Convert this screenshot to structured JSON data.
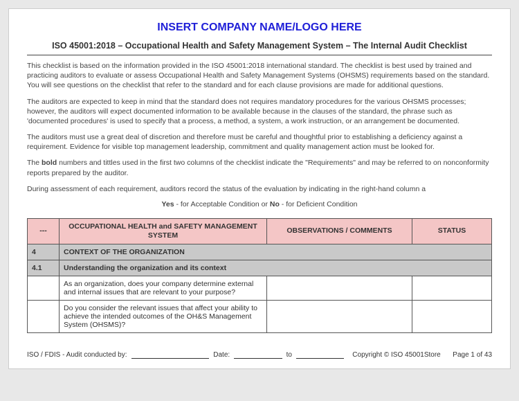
{
  "header": {
    "company_placeholder": "INSERT COMPANY NAME/LOGO HERE",
    "company_color": "#2020d8",
    "title": "ISO 45001:2018 – Occupational Health and Safety Management System – The Internal Audit Checklist"
  },
  "intro": {
    "p1": "This checklist is based on the information provided in the ISO 45001:2018 international standard. The checklist is best used by trained and practicing auditors to evaluate or assess Occupational Health and Safety Management Systems (OHSMS) requirements based on the standard. You will see questions on the checklist that refer to the standard and for each clause provisions are made for additional questions.",
    "p2": "The auditors are expected to keep in mind that the standard does not requires mandatory procedures for the various OHSMS processes; however, the auditors will expect documented information to be available because in the clauses of the standard, the phrase such as 'documented procedures' is used to specify that a process, a method, a system, a work instruction, or an arrangement be documented.",
    "p3": "The auditors must use a great deal of discretion and therefore must be careful and thoughtful prior to establishing a deficiency against a requirement.  Evidence for visible top management leadership, commitment and quality management action must be looked for.",
    "p4_prefix": "The ",
    "p4_bold": "bold",
    "p4_suffix": " numbers and tittles used in the first two columns of the checklist indicate the \"Requirements\" and may be referred to on nonconformity reports prepared by the auditor.",
    "p5": "During assessment of each requirement, auditors record the status of the evaluation by indicating in the right-hand column a"
  },
  "legend": {
    "yes": "Yes",
    "yes_txt": " - for Acceptable Condition or ",
    "no": "No",
    "no_txt": " - for Deficient Condition"
  },
  "table": {
    "header_bg": "#f4c6c6",
    "section_bg": "#c9c9c9",
    "columns": {
      "num": "---",
      "main": "OCCUPATIONAL HEALTH and SAFETY MANAGEMENT SYSTEM",
      "obs": "OBSERVATIONS / COMMENTS",
      "status": "STATUS"
    },
    "rows": [
      {
        "type": "section",
        "num": "4",
        "text": "CONTEXT OF THE ORGANIZATION"
      },
      {
        "type": "section",
        "num": "4.1",
        "text": "Understanding the organization and its context"
      },
      {
        "type": "item",
        "num": "",
        "text": "As an organization, does your company determine external and internal issues that are relevant to your purpose?"
      },
      {
        "type": "item",
        "num": "",
        "text": "Do you consider the relevant issues that affect your ability to achieve the intended outcomes of the OH&S Management System (OHSMS)?"
      }
    ]
  },
  "footer": {
    "left": "ISO / FDIS - Audit conducted by:",
    "date": "Date:",
    "to": "to",
    "copyright": "Copyright © ISO 45001Store",
    "page": "Page 1 of 43"
  }
}
